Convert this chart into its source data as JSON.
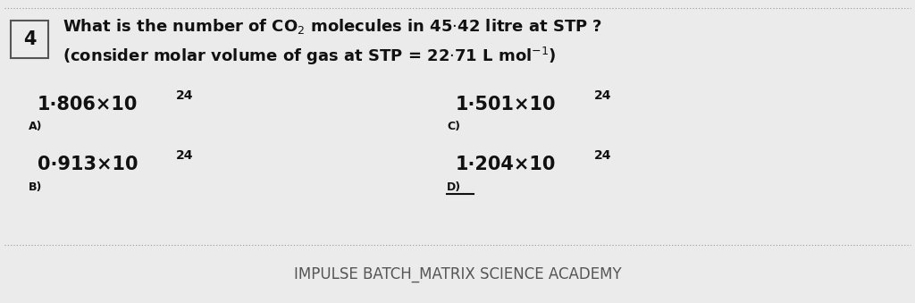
{
  "bg_color": "#ebebeb",
  "border_color": "#555555",
  "question_number": "4",
  "option_A_value": "1·806×10",
  "option_A_exp": "24",
  "option_C_value": "1·501×10",
  "option_C_exp": "24",
  "option_B_value": "0·913×10",
  "option_B_exp": "24",
  "option_D_value": "1·204×10",
  "option_D_exp": "24",
  "footer": "IMPULSE BATCH_MATRIX SCIENCE ACADEMY",
  "footer_color": "#555555",
  "text_color": "#111111",
  "dot_line_color": "#999999"
}
